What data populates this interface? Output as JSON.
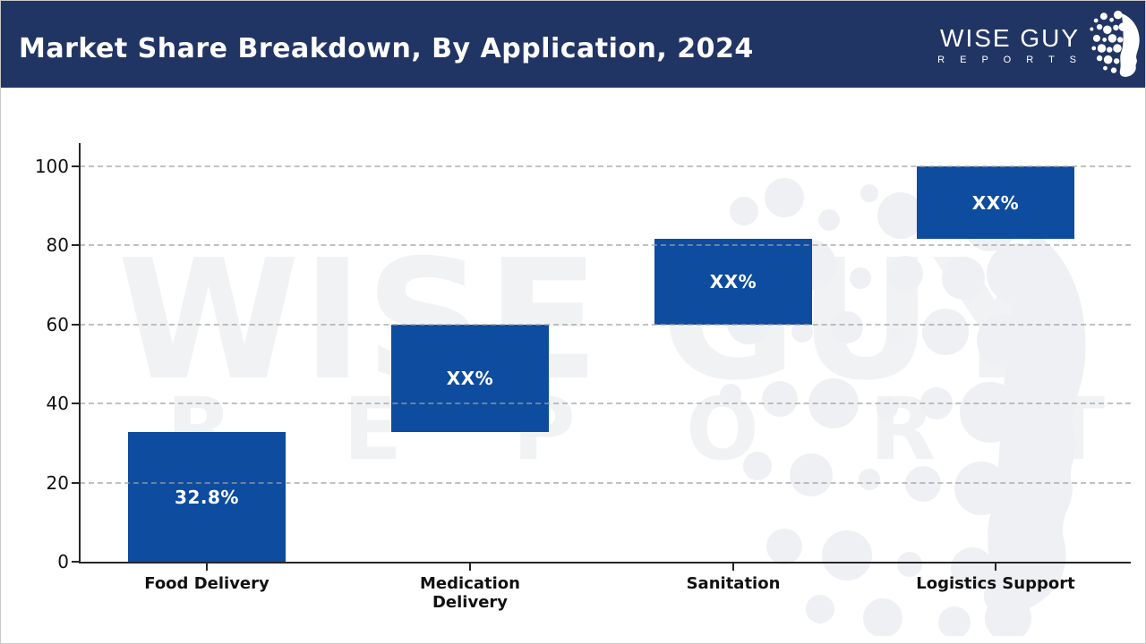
{
  "header": {
    "title": "Market Share Breakdown, By Application, 2024",
    "logo": {
      "name": "WISE GUY",
      "tagline": "R E P O R T S"
    }
  },
  "watermark": {
    "line1": "WISE GUY",
    "line2": "R E P O R T S"
  },
  "colors": {
    "header_bg": "#213564",
    "bar": "#0d4c9e",
    "bar_label": "#ffffff",
    "axis": "#262626",
    "grid": "#a0a0a0",
    "watermark": "#f1f2f4"
  },
  "chart_data": {
    "type": "bar",
    "subtype": "waterfall",
    "title": "Market Share Breakdown, By Application, 2024",
    "categories": [
      "Food Delivery",
      "Medication Delivery",
      "Sanitation",
      "Logistics Support"
    ],
    "categories_display": [
      "Food Delivery",
      "Medication\nDelivery",
      "Sanitation",
      "Logistics Support"
    ],
    "segments": [
      {
        "category": "Food Delivery",
        "start": 0,
        "end": 32.8,
        "value": 32.8,
        "label": "32.8%"
      },
      {
        "category": "Medication Delivery",
        "start": 32.8,
        "end": 60,
        "value": 27.2,
        "label": "XX%"
      },
      {
        "category": "Sanitation",
        "start": 60,
        "end": 81.6,
        "value": 21.6,
        "label": "XX%"
      },
      {
        "category": "Logistics Support",
        "start": 81.6,
        "end": 100,
        "value": 18.4,
        "label": "XX%"
      }
    ],
    "xlabel": "",
    "ylabel": "",
    "ylim": [
      0,
      100
    ],
    "yticks": [
      0,
      20,
      40,
      60,
      80,
      100
    ],
    "grid": "horizontal-dashed",
    "legend": "none"
  }
}
